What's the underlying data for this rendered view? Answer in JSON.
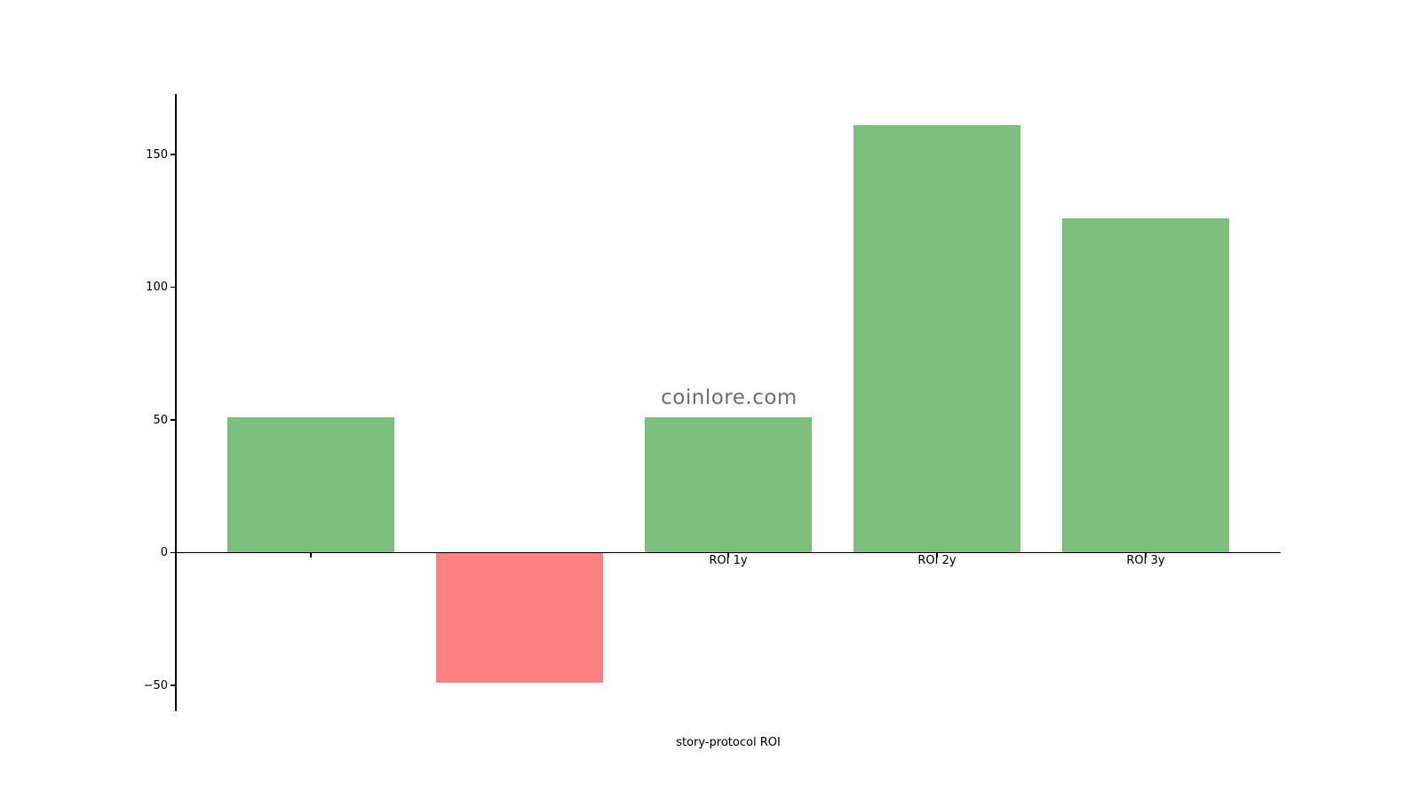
{
  "chart_data": {
    "type": "bar",
    "title": "",
    "xlabel": "story-protocol ROI",
    "ylabel": "",
    "watermark": "coinlore.com",
    "categories": [
      "",
      "",
      "ROI 1y",
      "ROI 2y",
      "ROI 3y"
    ],
    "values": [
      51,
      -49,
      51,
      161,
      126
    ],
    "bar_colors": [
      "#7cbe7c",
      "#ff8080",
      "#7cbe7c",
      "#7cbe7c",
      "#7cbe7c"
    ],
    "positive_color": "#7cbe7c",
    "negative_color": "#ff8080",
    "yticks": [
      150,
      100,
      50,
      0,
      -50
    ],
    "ytick_labels": [
      "150",
      "100",
      "50",
      "0",
      "−50"
    ],
    "ylim": [
      -60,
      173
    ],
    "grid": false,
    "legend_position": "none",
    "axis_color": "#000000",
    "text_color": "#000000",
    "watermark_color": "#707070"
  }
}
